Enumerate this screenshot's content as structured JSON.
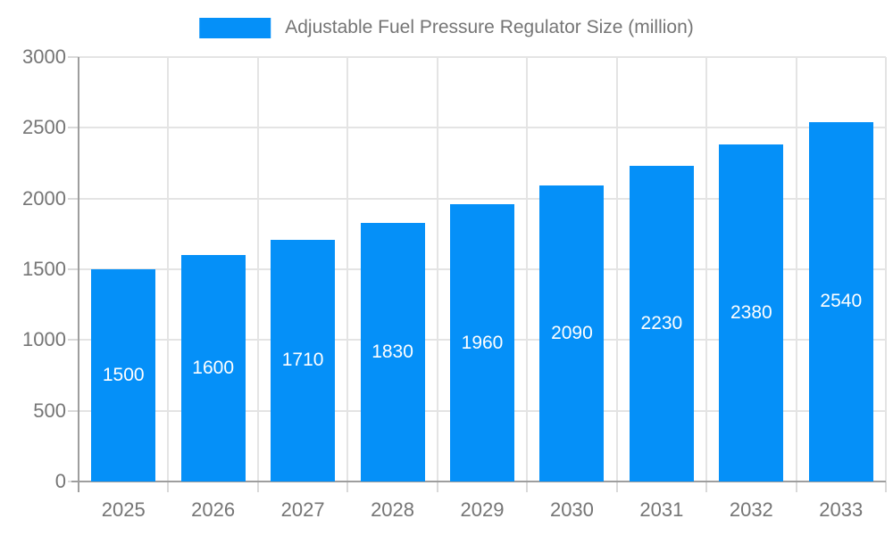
{
  "colors": {
    "bar": "#0590f8",
    "grid": "#e4e4e4",
    "axis": "#9e9e9e",
    "tick": "#d9d9d9",
    "tick_text": "#757575",
    "legend_text": "#757575",
    "value_label": "#ffffff",
    "background": "#ffffff"
  },
  "chart_data": {
    "type": "bar",
    "title": "",
    "categories": [
      "2025",
      "2026",
      "2027",
      "2028",
      "2029",
      "2030",
      "2031",
      "2032",
      "2033"
    ],
    "series": [
      {
        "name": "Adjustable Fuel Pressure Regulator Size (million)",
        "values": [
          1500,
          1600,
          1710,
          1830,
          1960,
          2090,
          2230,
          2380,
          2540
        ]
      }
    ],
    "value_labels": "inside-center",
    "xlabel": "",
    "ylabel": "",
    "ylim": [
      0,
      3000
    ],
    "yticks": [
      0,
      500,
      1000,
      1500,
      2000,
      2500,
      3000
    ],
    "grid": true,
    "legend_position": "top"
  }
}
